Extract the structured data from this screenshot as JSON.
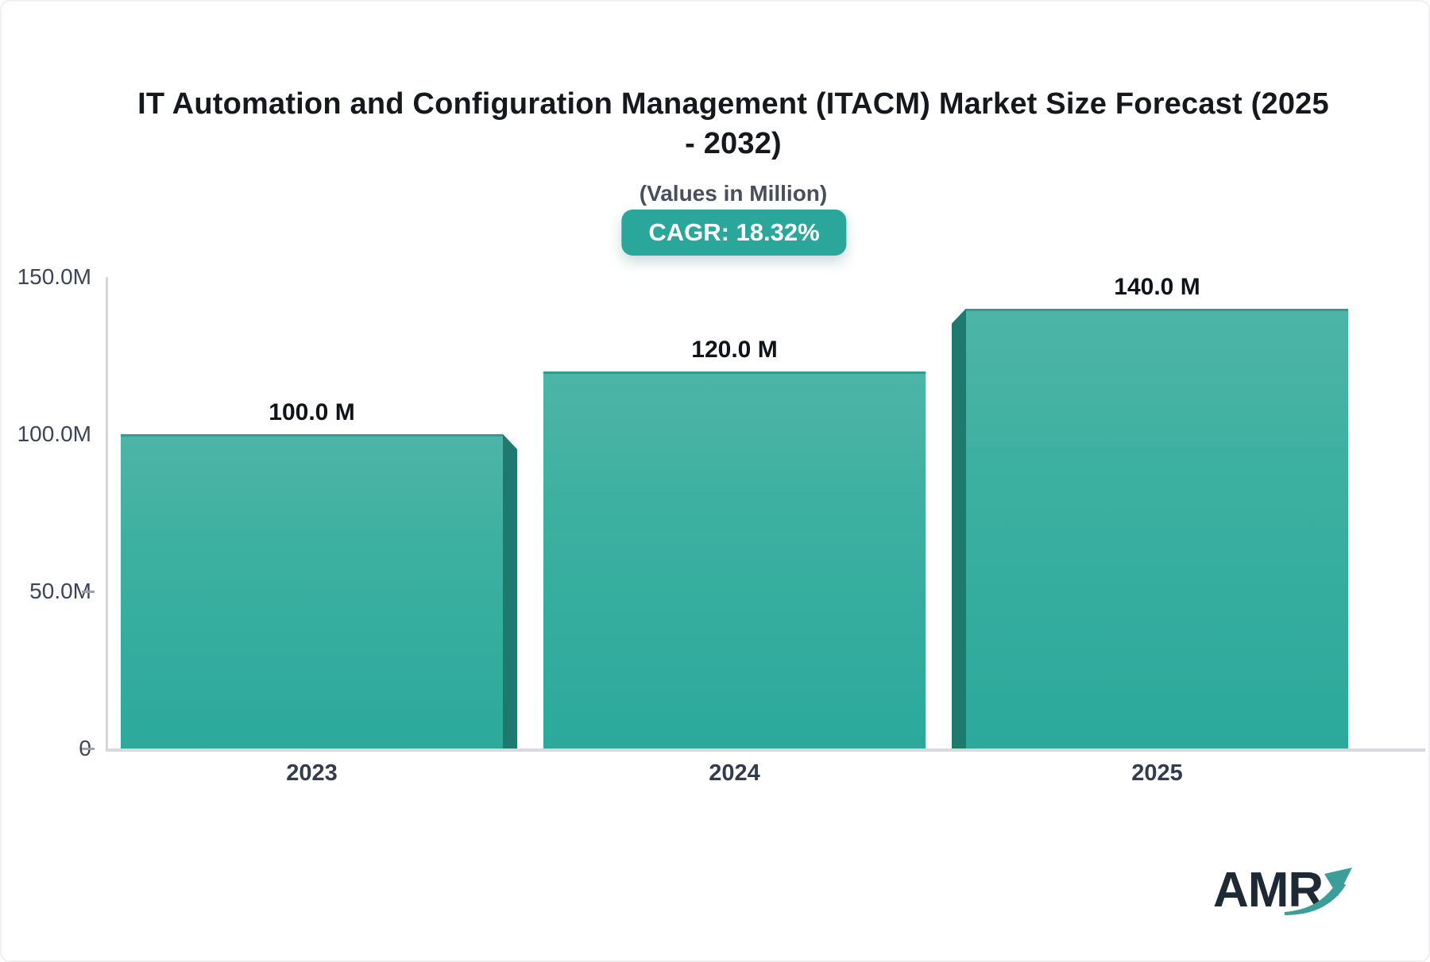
{
  "header": {
    "title_full": "IT Automation and Configuration Management (ITACM) Market Size Forecast (2025 - 2032)",
    "title_lines": [
      "IT Automation and Configuration Management (ITACM) Market Size Forecast (2025",
      "- 2032)"
    ],
    "subtitle": "(Values in Million)",
    "cagr_badge": "CAGR: 18.32%"
  },
  "chart_data": {
    "type": "bar",
    "title": "IT Automation and Configuration Management (ITACM) Market Size Forecast (2025 - 2032)",
    "subtitle": "(Values in Million)",
    "unit": "Million",
    "cagr_percent": 18.32,
    "categories": [
      "2023",
      "2024",
      "2025"
    ],
    "values": [
      100.0,
      120.0,
      140.0
    ],
    "value_labels": [
      "100.0 M",
      "120.0 M",
      "140.0 M"
    ],
    "ylim": [
      0,
      150
    ],
    "y_ticks": [
      {
        "label": "150.0M",
        "value": 150,
        "dash": false
      },
      {
        "label": "100.0M",
        "value": 100,
        "dash": false
      },
      {
        "label": "50.0M",
        "value": 50,
        "dash": true
      },
      {
        "label": "0",
        "value": 0,
        "dash": true
      }
    ],
    "grid": false,
    "legend": "none",
    "bar_shadow_sides": [
      "right",
      "none",
      "left"
    ]
  },
  "colors": {
    "accent_teal": "#2aa79a",
    "bar_gradient_top": "#4db5a7",
    "bar_gradient_bottom": "#2ba99b",
    "bar_top_border": "#2f9e91",
    "bar_shadow_strip": "#1e7a6e",
    "axis_line": "#d6d6dd",
    "title_text": "#15181d",
    "subtitle_text": "#474f5e",
    "badge_text": "#ffffff",
    "logo_navy": "#1d2935",
    "logo_teal": "#3b9e99"
  },
  "logo": {
    "text": "AMR",
    "arrow_icon": "trend-up-arrow"
  }
}
